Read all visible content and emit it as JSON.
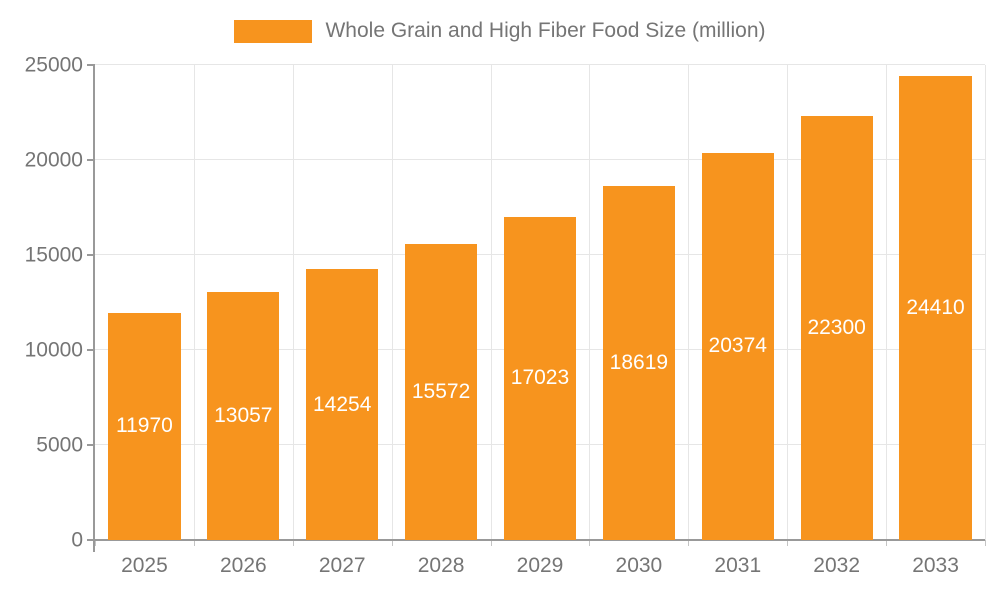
{
  "chart_data": {
    "type": "bar",
    "title": "Whole Grain and High Fiber Food Size (million)",
    "legend_label": "Whole Grain and High Fiber Food Size (million)",
    "legend_position": "top-center",
    "categories": [
      "2025",
      "2026",
      "2027",
      "2028",
      "2029",
      "2030",
      "2031",
      "2032",
      "2033"
    ],
    "series": [
      {
        "name": "Whole Grain and High Fiber Food Size (million)",
        "values": [
          11970,
          13057,
          14254,
          15572,
          17023,
          18619,
          20374,
          22300,
          24410
        ]
      }
    ],
    "xlabel": "",
    "ylabel": "",
    "ylim": [
      0,
      25000
    ],
    "y_ticks": [
      0,
      5000,
      10000,
      15000,
      20000,
      25000
    ],
    "grid": true,
    "value_labels": "inside-center",
    "colors": {
      "bar": "#f7941e",
      "value_label": "#ffffff",
      "axis_line": "#999999",
      "grid_line": "#e6e6e6",
      "tick_label": "#757575",
      "legend_text": "#757575",
      "background": "#ffffff"
    }
  }
}
